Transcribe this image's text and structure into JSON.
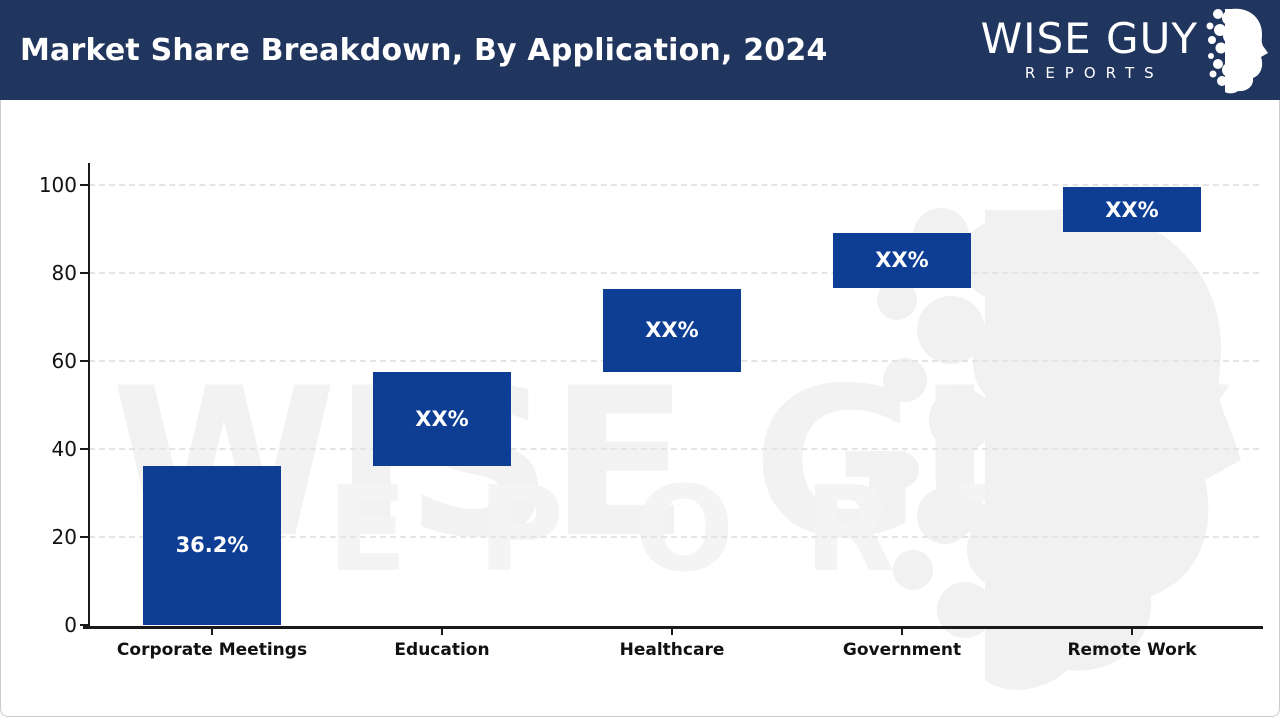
{
  "header": {
    "title": "Market Share Breakdown, By Application, 2024",
    "background_color": "#21365f",
    "logo": {
      "line1": "WISE GUY",
      "line2": "REPORTS"
    }
  },
  "watermark": {
    "line1": "WISE GUY",
    "line2": "REPORTS"
  },
  "chart_data": {
    "type": "bar",
    "subtype": "waterfall",
    "title": "Market Share Breakdown, By Application, 2024",
    "categories": [
      "Corporate Meetings",
      "Education",
      "Healthcare",
      "Government",
      "Remote Work"
    ],
    "segments": [
      {
        "category": "Corporate Meetings",
        "from": 0,
        "to": 36.2,
        "label": "36.2%"
      },
      {
        "category": "Education",
        "from": 36.2,
        "to": 57.5,
        "label": "XX%"
      },
      {
        "category": "Healthcare",
        "from": 57.5,
        "to": 76.4,
        "label": "XX%"
      },
      {
        "category": "Government",
        "from": 76.5,
        "to": 89.2,
        "label": "XX%"
      },
      {
        "category": "Remote Work",
        "from": 89.3,
        "to": 99.5,
        "label": "XX%"
      }
    ],
    "xlabel": "",
    "ylabel": "",
    "ylim": [
      0,
      105
    ],
    "yticks": [
      0,
      20,
      40,
      60,
      80,
      100
    ],
    "grid": "horizontal-dashed",
    "legend": "none",
    "bar_color": "#0d3e94",
    "bar_label_color": "#ffffff",
    "axis_color": "#1a1a1a",
    "grid_color": "#e4e4e4"
  }
}
